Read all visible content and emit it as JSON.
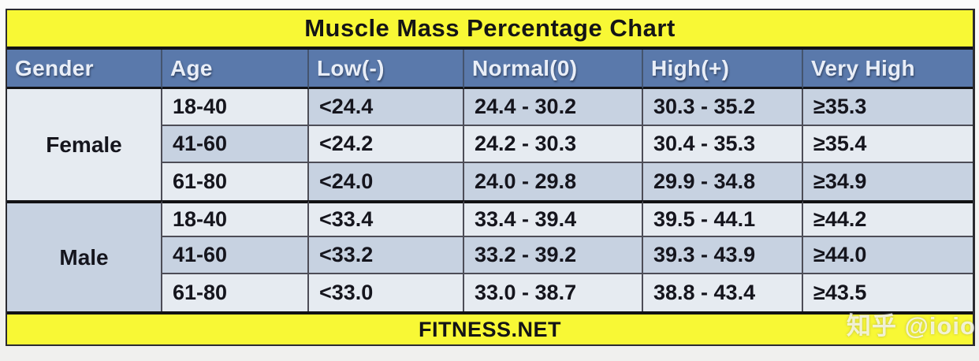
{
  "chart_data": {
    "type": "table",
    "title": "Muscle Mass Percentage Chart",
    "columns": [
      "Gender",
      "Age",
      "Low(-)",
      "Normal(0)",
      "High(+)",
      "Very High"
    ],
    "rows": [
      [
        "Female",
        "18-40",
        "<24.4",
        "24.4 - 30.2",
        "30.3 - 35.2",
        "≥35.3"
      ],
      [
        "Female",
        "41-60",
        "<24.2",
        "24.2 - 30.3",
        "30.4 - 35.3",
        "≥35.4"
      ],
      [
        "Female",
        "61-80",
        "<24.0",
        "24.0 - 29.8",
        "29.9 - 34.8",
        "≥34.9"
      ],
      [
        "Male",
        "18-40",
        "<33.4",
        "33.4 - 39.4",
        "39.5 - 44.1",
        "≥44.2"
      ],
      [
        "Male",
        "41-60",
        "<33.2",
        "33.2 - 39.2",
        "39.3 - 43.9",
        "≥44.0"
      ],
      [
        "Male",
        "61-80",
        "<33.0",
        "33.0 - 38.7",
        "38.8 - 43.4",
        "≥43.5"
      ]
    ],
    "source_label": "FITNESS.NET"
  },
  "watermark": {
    "text": "知乎 @ioio"
  },
  "colors": {
    "title_background": "#f8f835",
    "header_background": "#5a79ab",
    "header_text": "#e9eef7",
    "row_light": "#e6ebf1",
    "row_dark": "#c7d2e1",
    "border_thick": "#121214",
    "text": "#15151d"
  }
}
